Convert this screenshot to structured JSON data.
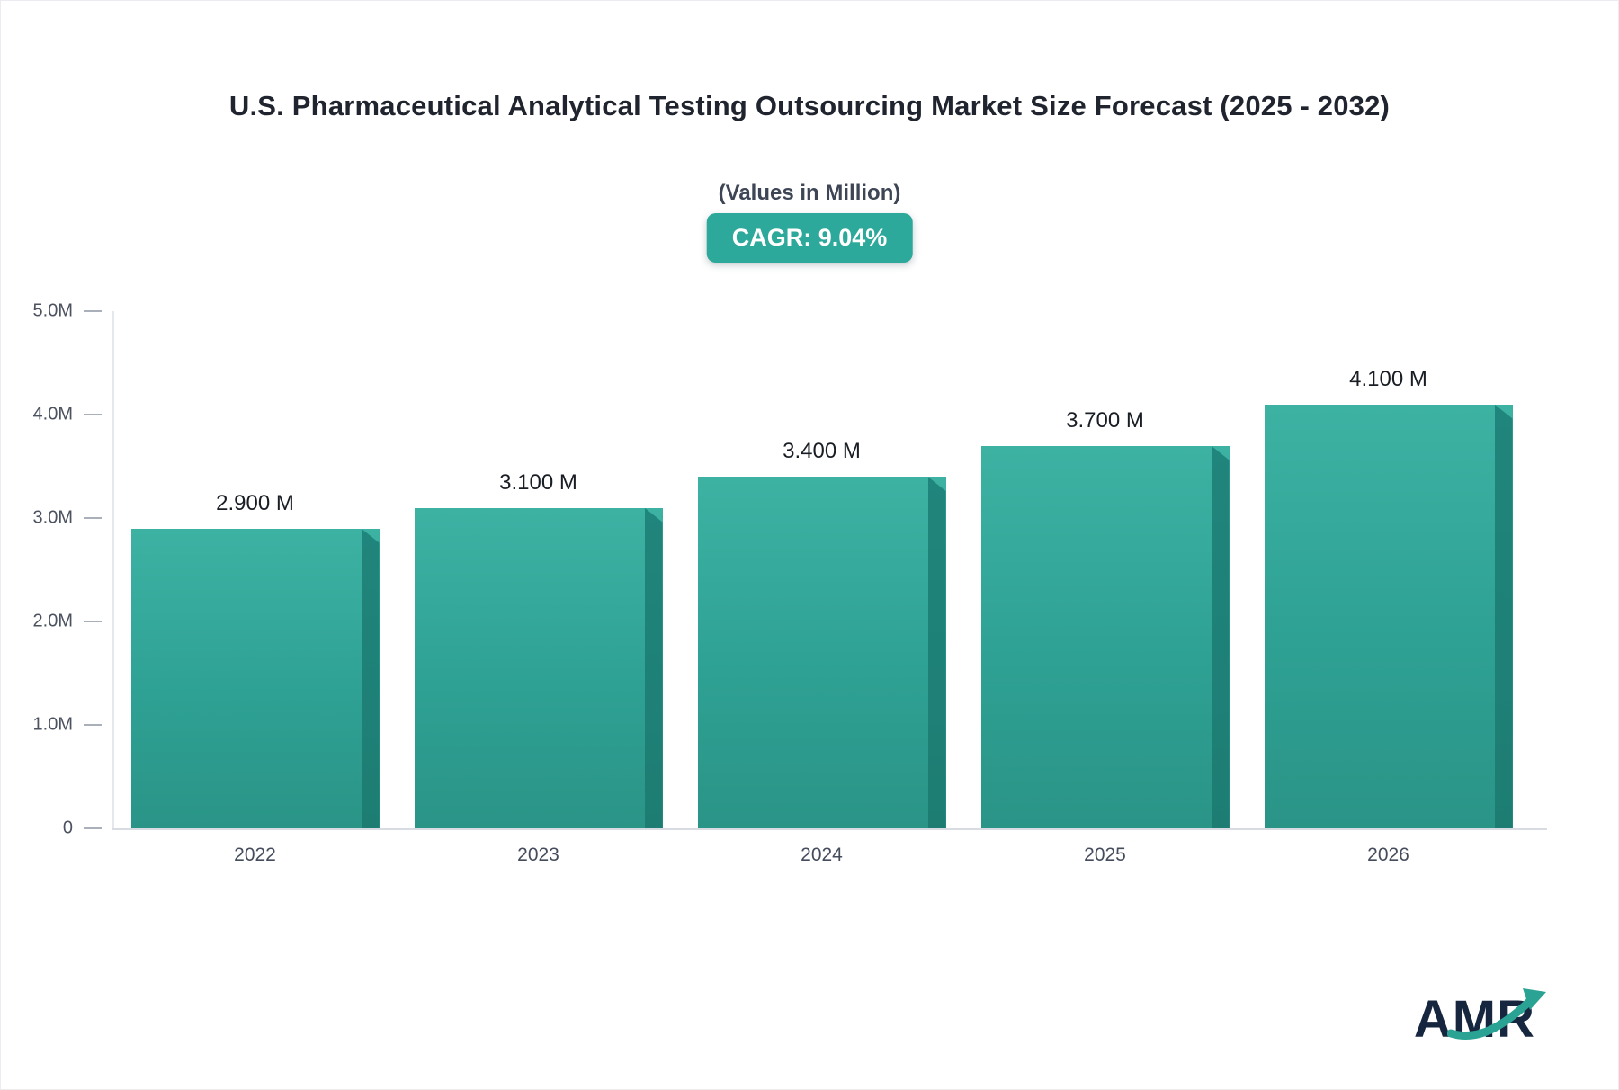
{
  "title": "U.S. Pharmaceutical Analytical Testing Outsourcing Market Size Forecast (2025 - 2032)",
  "subtitle": "(Values in Million)",
  "cagr_badge": "CAGR: 9.04%",
  "logo_text": "AMR",
  "colors": {
    "bar": "#2ea194",
    "bar_edge_dark": "#1d7d73",
    "badge_background": "#2ca99a",
    "badge_text": "#ffffff",
    "title_text": "#20242e",
    "logo_text": "#17263f",
    "logo_arrow": "#2aa394"
  },
  "chart_data": {
    "type": "bar",
    "title": "U.S. Pharmaceutical Analytical Testing Outsourcing Market Size Forecast (2025 - 2032)",
    "subtitle": "(Values in Million)",
    "categories": [
      "2022",
      "2023",
      "2024",
      "2025",
      "2026"
    ],
    "values": [
      2.9,
      3.1,
      3.4,
      3.7,
      4.1
    ],
    "value_labels": [
      "2.900 M",
      "3.100 M",
      "3.400 M",
      "3.700 M",
      "4.100 M"
    ],
    "unit": "Million",
    "xlabel": "",
    "ylabel": "",
    "ylim": [
      0,
      5
    ],
    "y_ticks": [
      {
        "value": 0,
        "label": "0"
      },
      {
        "value": 1,
        "label": "1.0M"
      },
      {
        "value": 2,
        "label": "2.0M"
      },
      {
        "value": 3,
        "label": "3.0M"
      },
      {
        "value": 4,
        "label": "4.0M"
      },
      {
        "value": 5,
        "label": "5.0M"
      }
    ],
    "grid": false,
    "legend": false,
    "cagr": "9.04%"
  }
}
